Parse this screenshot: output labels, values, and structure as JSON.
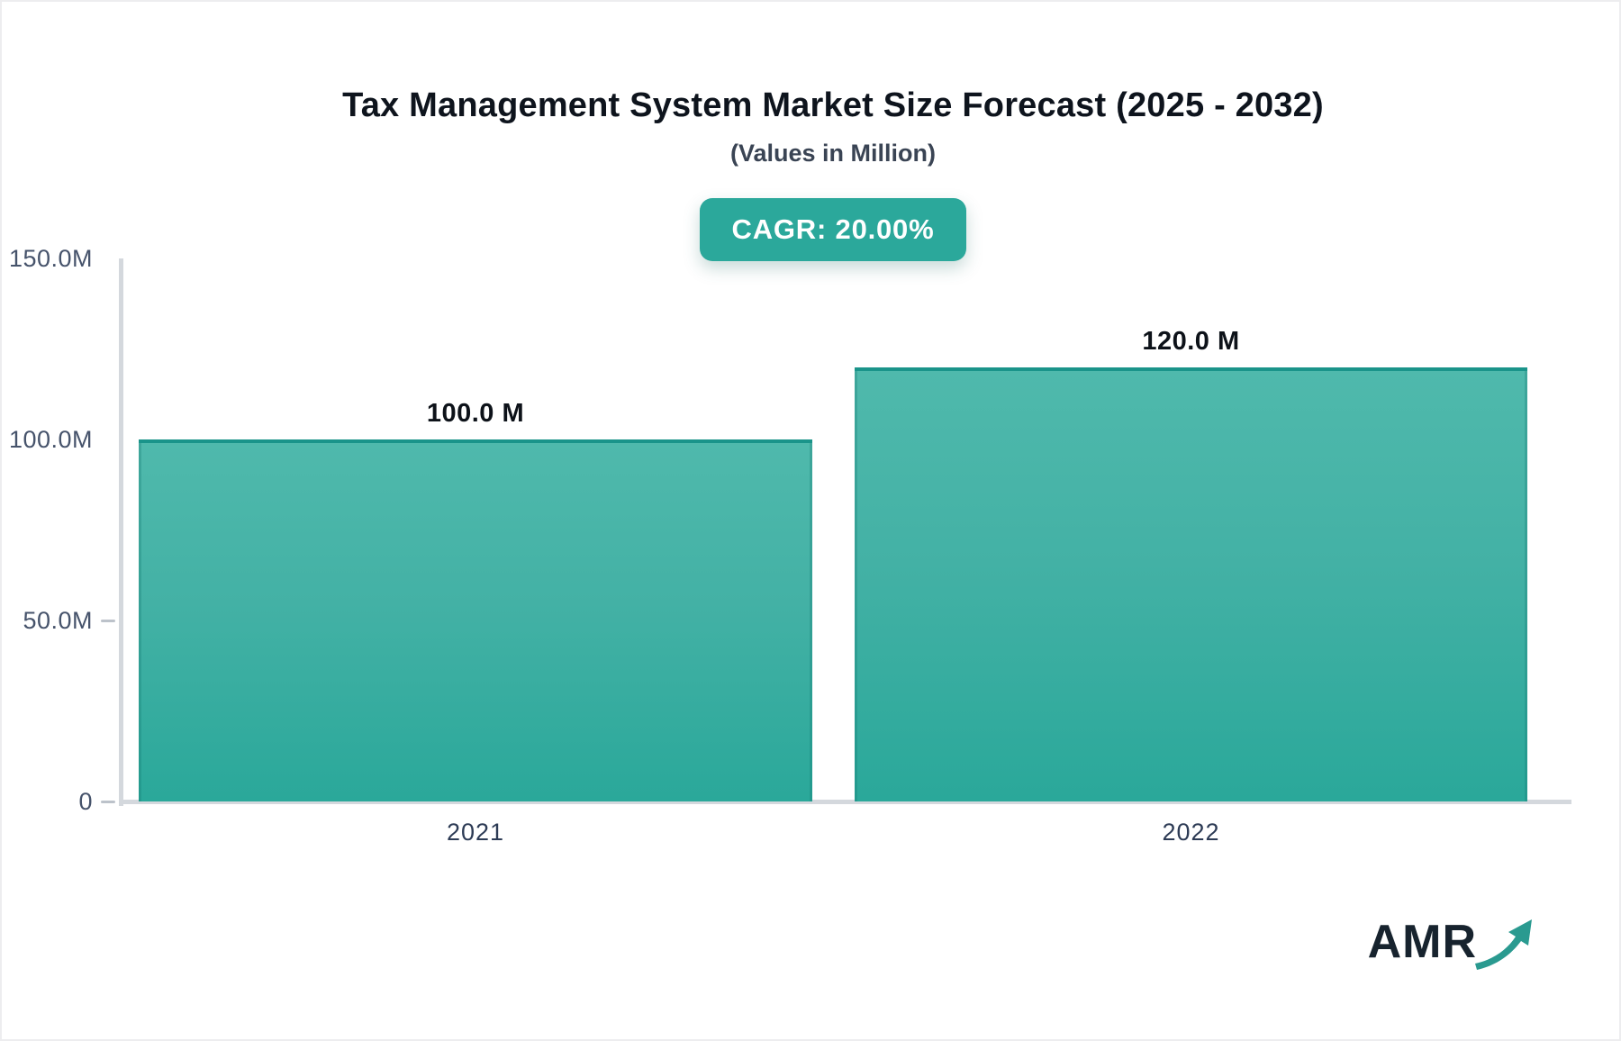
{
  "header": {
    "title": "Tax Management System Market Size Forecast (2025 - 2032)",
    "subtitle": "(Values in Million)",
    "cagr_label": "CAGR: 20.00%"
  },
  "chart_data": {
    "type": "bar",
    "title": "Tax Management System Market Size Forecast (2025 - 2032)",
    "subtitle": "(Values in Million)",
    "unit": "Million",
    "cagr_percent": 20.0,
    "categories": [
      "2021",
      "2022"
    ],
    "values": [
      100.0,
      120.0
    ],
    "value_labels": [
      "100.0 M",
      "120.0 M"
    ],
    "ylim": [
      0,
      150
    ],
    "yticks": [
      {
        "value": 0,
        "label": "0",
        "dash": true
      },
      {
        "value": 50,
        "label": "50.0M",
        "dash": true
      },
      {
        "value": 100,
        "label": "100.0M",
        "dash": false
      },
      {
        "value": 150,
        "label": "150.0M",
        "dash": false
      }
    ],
    "grid": false,
    "legend": false,
    "colors": {
      "bar_top": "#4fb9ac",
      "bar_bottom": "#2aa89a",
      "bar_border": "#1a948a",
      "badge_background": "#2ba89b",
      "axis_line": "#d4d8dd",
      "tick_text": "#46536b",
      "category_text": "#2d3b55"
    }
  },
  "logo": {
    "text": "AMR",
    "arrow_color": "#2a9a90"
  }
}
